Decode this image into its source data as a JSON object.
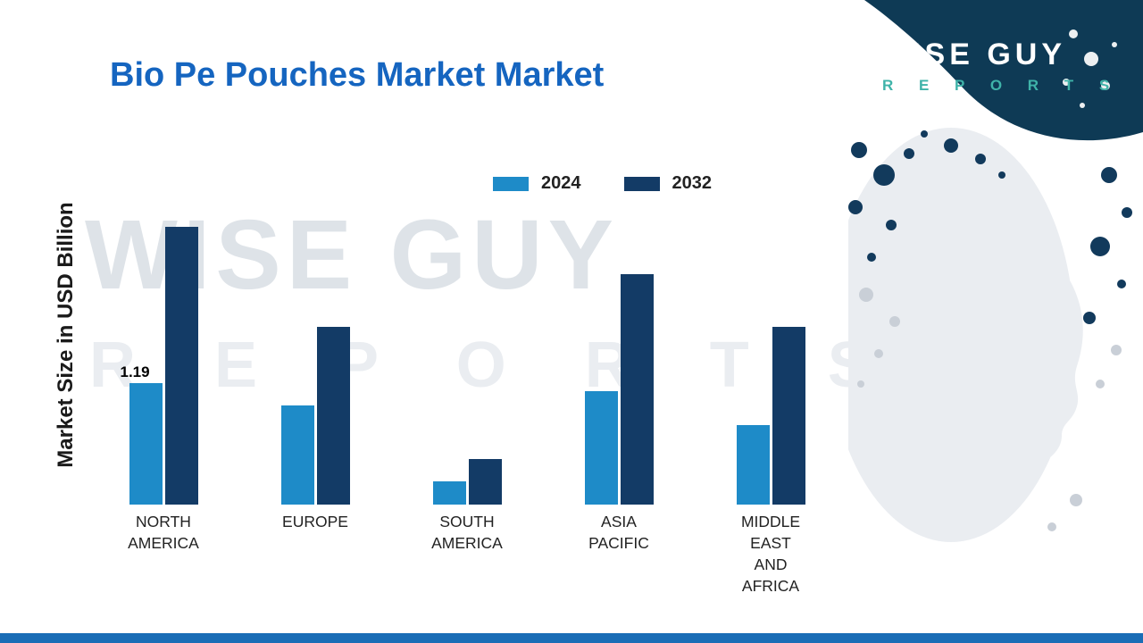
{
  "title": "Bio Pe Pouches Market  Market",
  "y_axis_label": "Market Size in USD Billion",
  "legend": [
    {
      "label": "2024",
      "color": "#1e8bc8"
    },
    {
      "label": "2032",
      "color": "#133b66"
    }
  ],
  "watermark": {
    "line1": "WISE GUY",
    "line2": "R E P O R T S"
  },
  "logo": {
    "line1": "WISE GUY",
    "line2": "R E P O R T S"
  },
  "colors": {
    "title": "#1565c0",
    "bar_2024": "#1e8bc8",
    "bar_2032": "#133b66",
    "footer": "#1a6db6",
    "logo_background": "#0e3a55",
    "logo_reports": "#3fb3a9"
  },
  "chart_data": {
    "type": "bar",
    "categories": [
      "NORTH\nAMERICA",
      "EUROPE",
      "SOUTH\nAMERICA",
      "ASIA\nPACIFIC",
      "MIDDLE\nEAST\nAND\nAFRICA"
    ],
    "series": [
      {
        "name": "2024",
        "color": "#1e8bc8",
        "values": [
          1.19,
          0.97,
          0.23,
          1.11,
          0.78
        ]
      },
      {
        "name": "2032",
        "color": "#133b66",
        "values": [
          2.72,
          1.74,
          0.45,
          2.26,
          1.74
        ]
      }
    ],
    "title": "Bio Pe Pouches Market  Market",
    "xlabel": "",
    "ylabel": "Market Size in USD Billion",
    "ylim": [
      0,
      2.8
    ],
    "legend_position": "top",
    "grid": false,
    "annotations": [
      {
        "category_index": 0,
        "series_index": 0,
        "text": "1.19"
      }
    ]
  }
}
